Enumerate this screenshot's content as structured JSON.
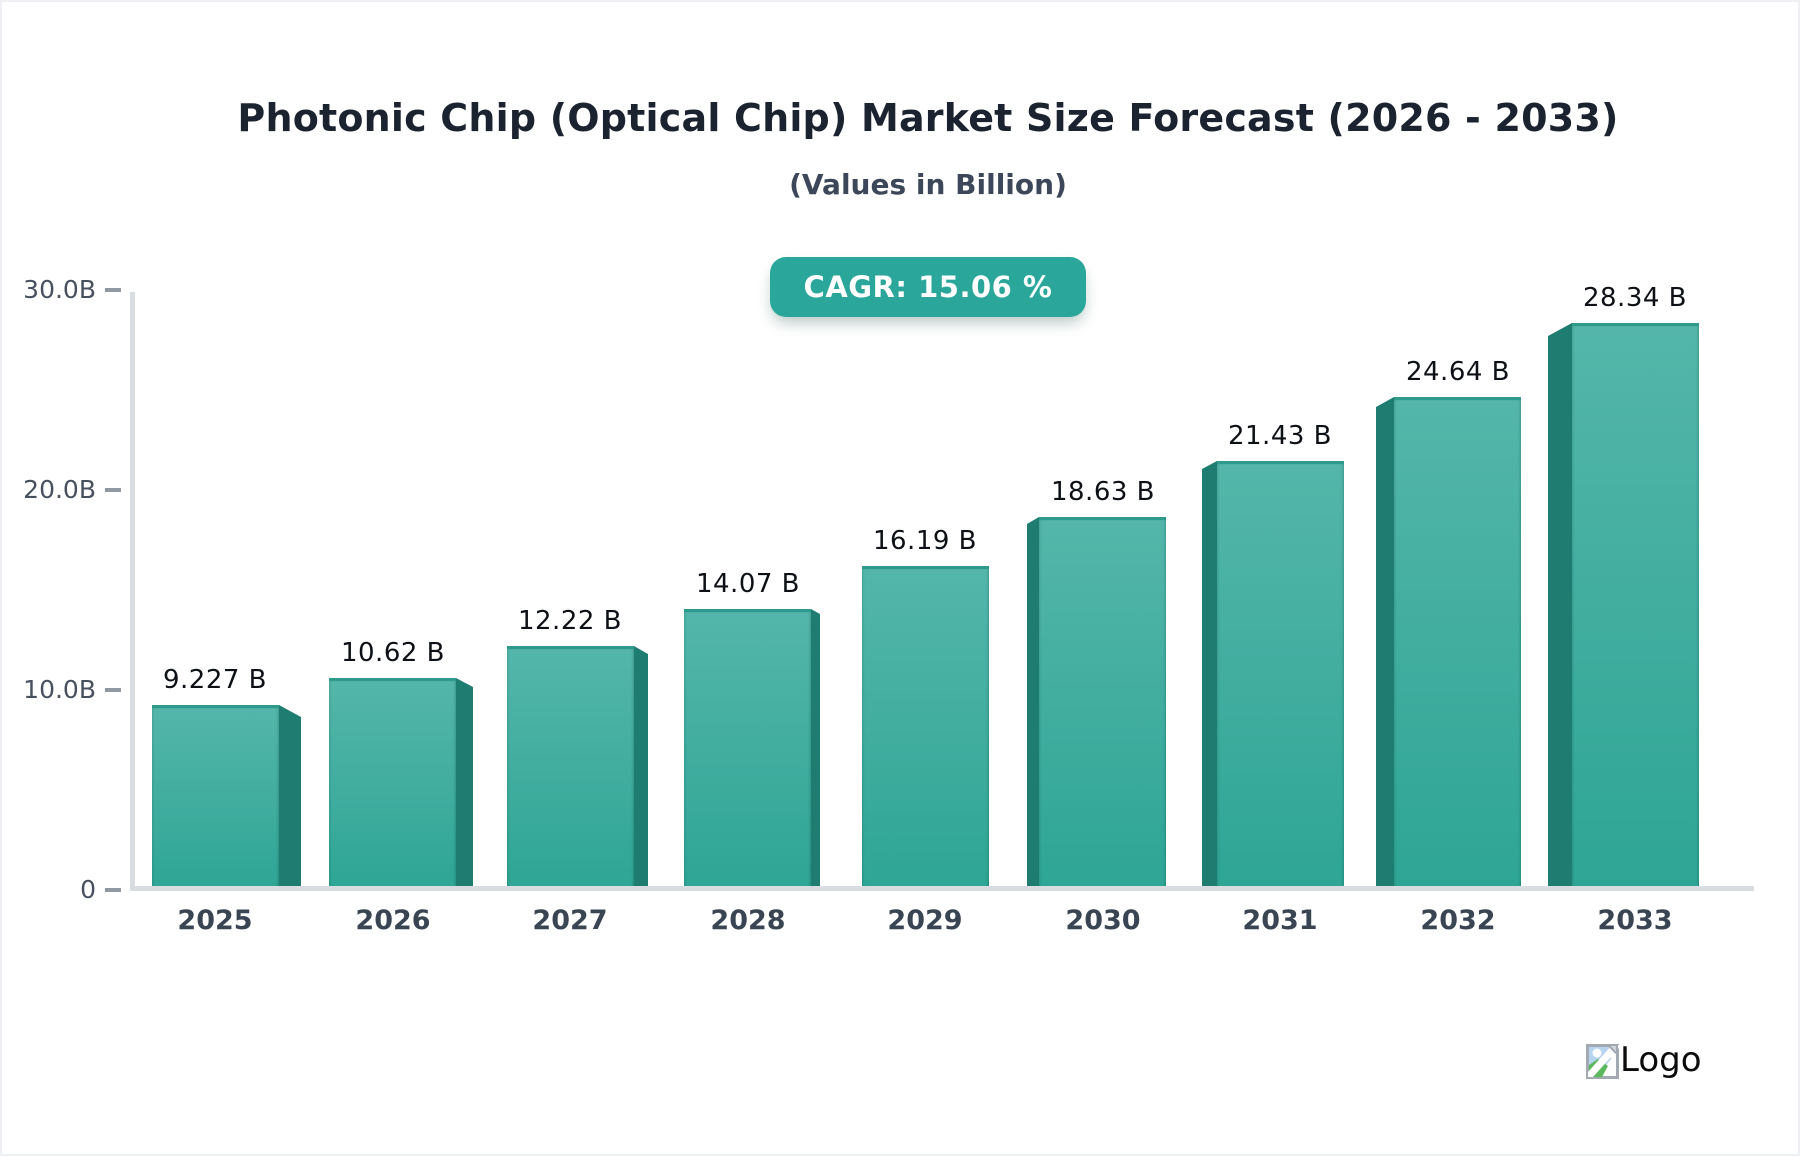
{
  "title": "Photonic Chip (Optical Chip) Market Size Forecast (2026 - 2033)",
  "subtitle": "(Values in Billion)",
  "cagr_badge": "CAGR: 15.06 %",
  "footer": {
    "logo_alt": "Logo"
  },
  "icons": {
    "logo_placeholder": "broken-image-icon"
  },
  "colors": {
    "accent": "#2aa79a",
    "bar_face_top": "#54b6aa",
    "bar_face_bottom": "#2ea595",
    "bar_side": "#1f7c71",
    "bar_top_edge": "#2d9a8c",
    "axis": "#d9dce1",
    "tick": "#8f98a3",
    "title_text": "#1b2230",
    "subtitle_text": "#3c4859",
    "value_text": "#0d1117"
  },
  "chart_data": {
    "type": "bar",
    "title": "Photonic Chip (Optical Chip) Market Size Forecast (2026 - 2033)",
    "subtitle": "(Values in Billion)",
    "annotation": "CAGR: 15.06 %",
    "cagr_percent": 15.06,
    "unit": "Billion",
    "categories": [
      "2025",
      "2026",
      "2027",
      "2028",
      "2029",
      "2030",
      "2031",
      "2032",
      "2033"
    ],
    "values": [
      9.227,
      10.62,
      12.22,
      14.07,
      16.19,
      18.63,
      21.43,
      24.64,
      28.34
    ],
    "value_labels": [
      "9.227 B",
      "10.62 B",
      "12.22 B",
      "14.07 B",
      "16.19 B",
      "18.63 B",
      "21.43 B",
      "24.64 B",
      "28.34 B"
    ],
    "ylim": [
      0,
      30
    ],
    "yticks": [
      {
        "label": "0",
        "value": 0
      },
      {
        "label": "10.0B",
        "value": 10
      },
      {
        "label": "20.0B",
        "value": 20
      },
      {
        "label": "30.0B",
        "value": 30
      }
    ],
    "grid": false,
    "legend": false,
    "bar_style": "pseudo-3d-teal"
  }
}
